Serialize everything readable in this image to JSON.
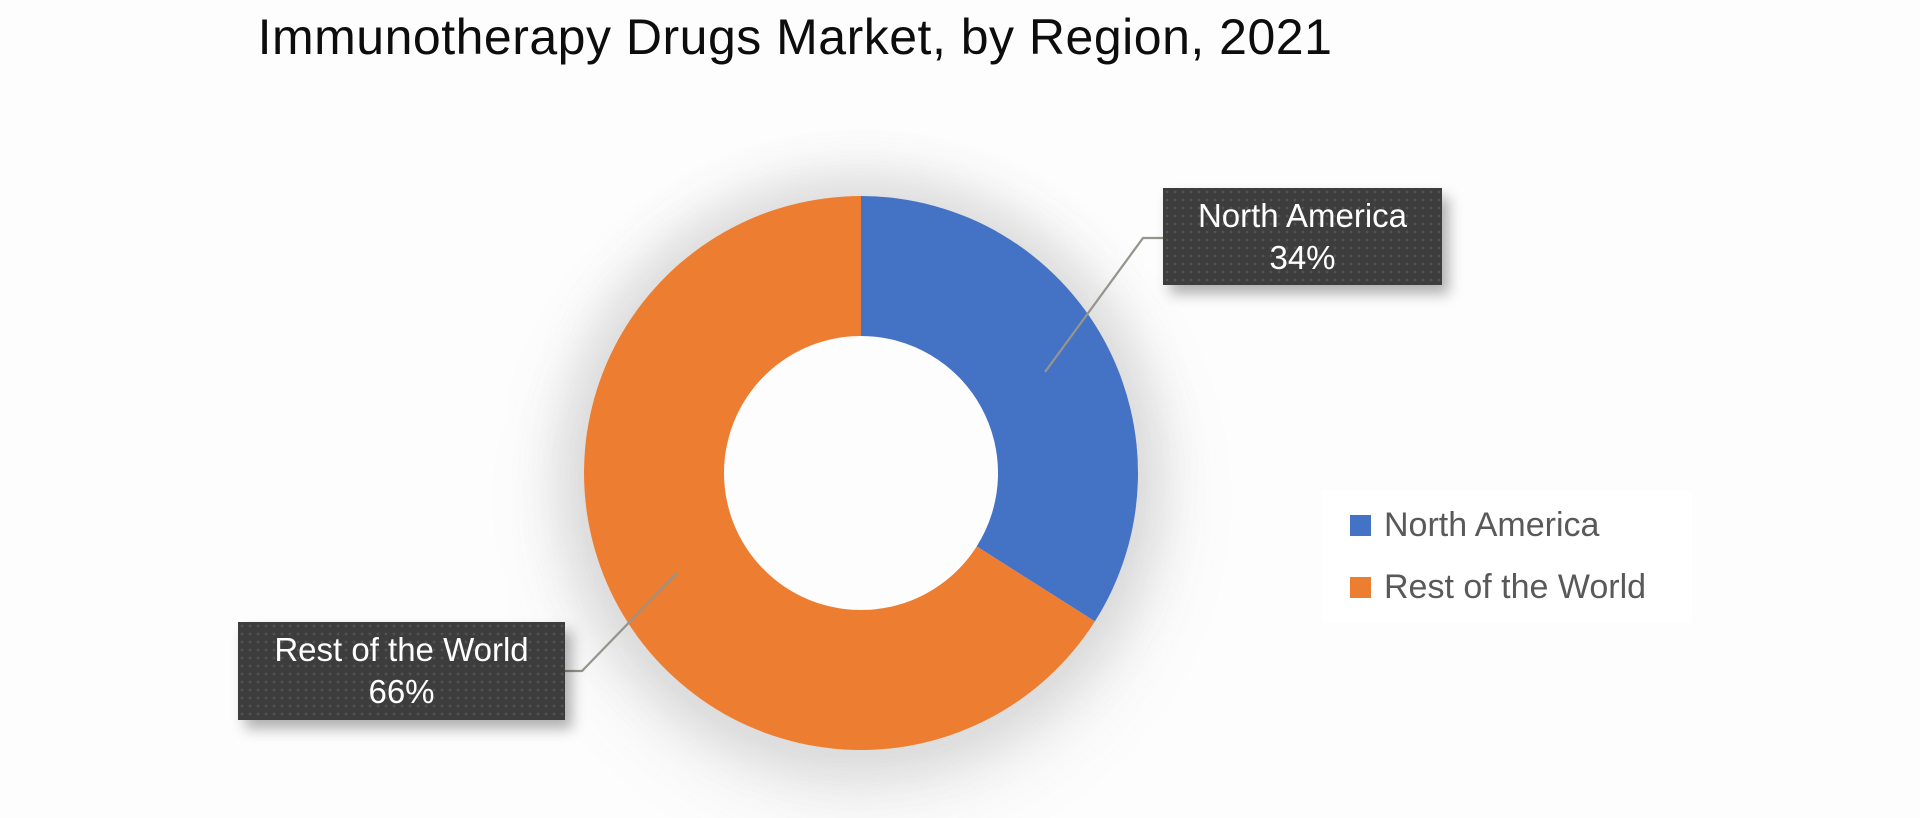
{
  "title": "Immunotherapy Drugs Market, by Region, 2021",
  "chart_data": {
    "type": "pie",
    "subtype": "doughnut",
    "title": "Immunotherapy Drugs Market, by Region, 2021",
    "categories": [
      "North America",
      "Rest of the World"
    ],
    "values": [
      34,
      66
    ],
    "unit": "%",
    "colors": [
      "#4472C4",
      "#ED7D31"
    ],
    "start_angle_deg": 0,
    "direction": "clockwise",
    "hole_ratio": 0.495,
    "legend_position": "right",
    "data_labels": [
      {
        "label": "North America",
        "value_text": "34%"
      },
      {
        "label": "Rest of the World",
        "value_text": "66%"
      }
    ]
  },
  "callouts": [
    {
      "label": "North America",
      "value": "34%"
    },
    {
      "label": "Rest of the World",
      "value": "66%"
    }
  ],
  "legend": {
    "items": [
      {
        "label": "North America",
        "color": "#4472C4"
      },
      {
        "label": "Rest of the World",
        "color": "#ED7D31"
      }
    ]
  },
  "styles": {
    "slice_blue": "#4472C4",
    "slice_orange": "#ED7D31",
    "leader_line_color": "#96948C",
    "callout_bg": "#3D3D3D",
    "callout_text": "#FFFFFF",
    "legend_bg": "#FFFFFF",
    "legend_text": "#595959",
    "title_color": "#0D0D0D"
  }
}
